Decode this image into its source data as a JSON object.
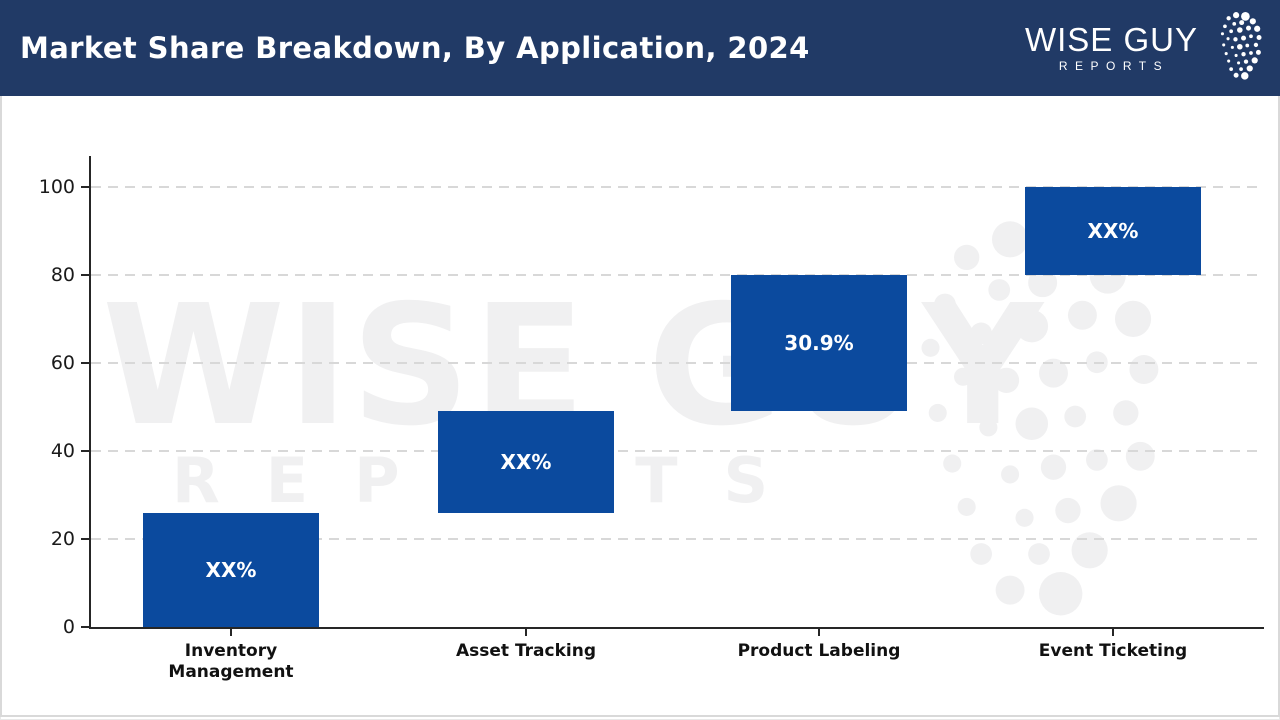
{
  "header": {
    "title": "Market Share Breakdown, By Application, 2024",
    "logo": {
      "line1": "WISE GUY",
      "line2": "REPORTS"
    }
  },
  "watermark": {
    "line1": "WISE GUY",
    "line2": "REPORTS"
  },
  "chart_data": {
    "type": "bar",
    "variant": "floating-waterfall",
    "title": "Market Share Breakdown, By Application, 2024",
    "categories": [
      "Inventory Management",
      "Asset Tracking",
      "Product Labeling",
      "Event Ticketing"
    ],
    "segments": [
      {
        "start": 0,
        "end": 25.8,
        "label": "XX%"
      },
      {
        "start": 25.8,
        "end": 49.1,
        "label": "XX%"
      },
      {
        "start": 49.1,
        "end": 80,
        "label": "30.9%"
      },
      {
        "start": 80,
        "end": 100,
        "label": "XX%"
      }
    ],
    "xlabel": "",
    "ylabel": "",
    "ylim": [
      0,
      100
    ],
    "yticks": [
      0,
      20,
      40,
      60,
      80,
      100
    ],
    "grid": "horizontal-dashed",
    "legend": false
  },
  "colors": {
    "header_bg": "#213a66",
    "bar_fill": "#0b4a9e",
    "bar_label_text": "#ffffff",
    "gridline": "#d8d8d8",
    "axis": "#262626",
    "tick_text": "#1a1a1a",
    "watermark": "#f0f0f1",
    "title_text": "#ffffff"
  }
}
